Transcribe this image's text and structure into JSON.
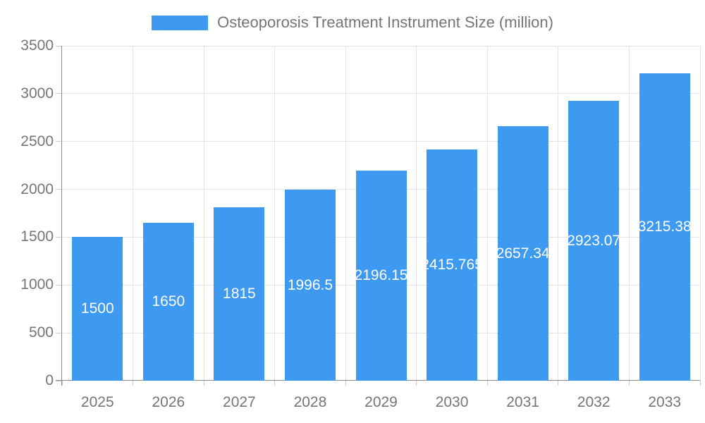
{
  "legend": {
    "swatch_icon": "legend-swatch-blue",
    "label": "Osteoporosis Treatment Instrument Size (million)"
  },
  "chart_data": {
    "type": "bar",
    "title": "Osteoporosis Treatment Instrument Size (million)",
    "xlabel": "",
    "ylabel": "",
    "categories": [
      "2025",
      "2026",
      "2027",
      "2028",
      "2029",
      "2030",
      "2031",
      "2032",
      "2033"
    ],
    "series": [
      {
        "name": "Osteoporosis Treatment Instrument Size (million)",
        "values": [
          1500,
          1650,
          1815,
          1996.5,
          2196.15,
          2415.765,
          2657.34,
          2923.07,
          3215.38
        ],
        "value_labels": [
          "1500",
          "1650",
          "1815",
          "1996.5",
          "2196.15",
          "2415.765",
          "2657.34",
          "2923.07",
          "3215.38"
        ]
      }
    ],
    "ylim": [
      0,
      3500
    ],
    "yticks": [
      0,
      500,
      1000,
      1500,
      2000,
      2500,
      3000,
      3500
    ],
    "ytick_labels": [
      "0",
      "500",
      "1000",
      "1500",
      "2000",
      "2500",
      "3000",
      "3500"
    ],
    "grid": true,
    "legend_position": "top-center",
    "value_label_position": "inside-center",
    "colors": {
      "bar": "#3D9AF0",
      "axis_text": "#757575",
      "value_label_text": "#FFFFFF",
      "grid_line": "#E3E3E3",
      "tick_line": "#C9C9C9",
      "axis_line": "#8A8A8A",
      "background": "#FFFFFF"
    }
  }
}
